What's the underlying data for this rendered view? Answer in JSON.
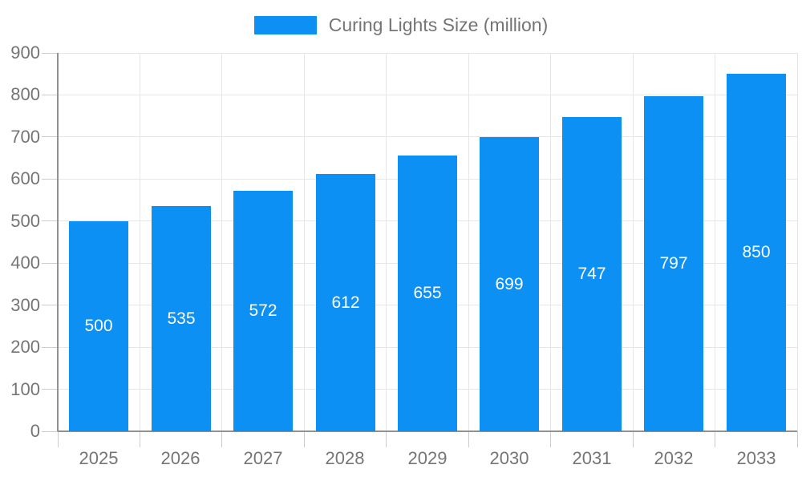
{
  "chart_data": {
    "type": "bar",
    "title": "Curing Lights Size (million)",
    "legend_entries": [
      "Curing Lights Size (million)"
    ],
    "legend_position": "top-center",
    "categories": [
      "2025",
      "2026",
      "2027",
      "2028",
      "2029",
      "2030",
      "2031",
      "2032",
      "2033"
    ],
    "values": [
      500,
      535,
      572,
      612,
      655,
      699,
      747,
      797,
      850
    ],
    "xlabel": "",
    "ylabel": "",
    "ylim": [
      0,
      900
    ],
    "ytick_step": 100,
    "ytick_labels": [
      "0",
      "100",
      "200",
      "300",
      "400",
      "500",
      "600",
      "700",
      "800",
      "900"
    ],
    "grid": true,
    "value_label_placement": "inside-center",
    "colors": {
      "bar": "#0d90f4",
      "axis_line": "#919191",
      "gridline": "#e6e6e6",
      "tick": "#cccccc",
      "axis_text": "#757575",
      "legend_text": "#757575",
      "value_label_text": "#ffffff",
      "background": "#ffffff"
    }
  }
}
